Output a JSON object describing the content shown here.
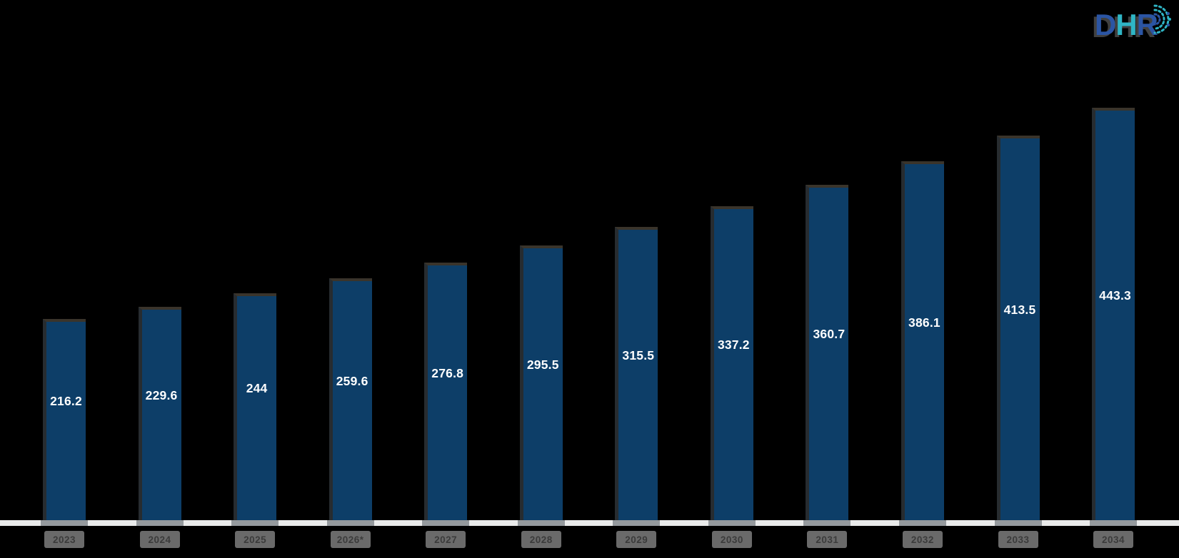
{
  "brand": {
    "logo_text_d": "D",
    "logo_text_h": "H",
    "logo_text_r": "R",
    "logo_blue": "#2b55a4",
    "logo_teal": "#2fb5c5",
    "globe_icon": "dotted-globe-icon"
  },
  "chart_data": {
    "type": "bar",
    "title": "",
    "xlabel": "",
    "ylabel": "",
    "categories": [
      "2023",
      "2024",
      "2025",
      "2026*",
      "2027",
      "2028",
      "2029",
      "2030",
      "2031",
      "2032",
      "2033",
      "2034"
    ],
    "values": [
      216.2,
      229.6,
      244,
      259.6,
      276.8,
      295.5,
      315.5,
      337.2,
      360.7,
      386.1,
      413.5,
      443.3
    ],
    "value_labels": [
      "216.2",
      "229.6",
      "244",
      "259.6",
      "276.8",
      "295.5",
      "315.5",
      "337.2",
      "360.7",
      "386.1",
      "413.5",
      "443.3"
    ],
    "ylim": [
      0,
      460
    ],
    "grid": false,
    "legend": false,
    "background_color": "#000000",
    "bar_color": "#0d3e68",
    "value_label_color": "#ffffff",
    "axis_line_color": "#e9eaea",
    "bar_shadow_color": "#94999d",
    "category_pill_color": "#6a6a6a",
    "category_text_color": "#3b3b3b",
    "category_labels_obscured": true,
    "value_labels_position": "inside-middle"
  }
}
